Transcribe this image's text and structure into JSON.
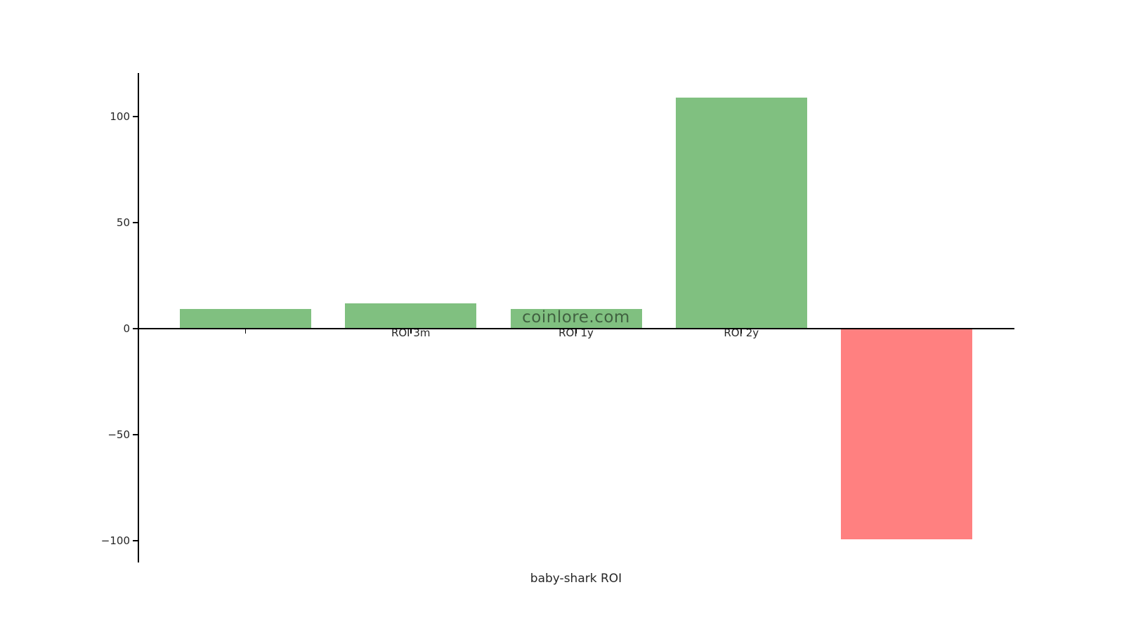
{
  "page": {
    "background_color": "#ffffff"
  },
  "watermark": {
    "text": "coinlore.com"
  },
  "chart_data": {
    "type": "bar",
    "title": "baby-shark ROI",
    "xlabel": "",
    "ylabel": "",
    "grid": false,
    "legend": null,
    "categories": [
      "",
      "ROI 3m",
      "ROI 1y",
      "ROI 2y",
      ""
    ],
    "values": [
      9.2,
      11.9,
      9.3,
      108.9,
      -99.3
    ],
    "series": [
      {
        "name": "baby-shark ROI",
        "values": [
          9.2,
          11.9,
          9.3,
          108.9,
          -99.3
        ]
      }
    ],
    "bar_colors": {
      "positive": "#80c080",
      "negative": "#ff8080"
    },
    "axis_color": "#000000",
    "ylim": [
      -110,
      120.5
    ],
    "yticks": {
      "values": [
        100,
        50,
        0,
        -50,
        -100
      ],
      "labels": [
        "100",
        "50",
        "0",
        "−50",
        "−100"
      ]
    }
  }
}
